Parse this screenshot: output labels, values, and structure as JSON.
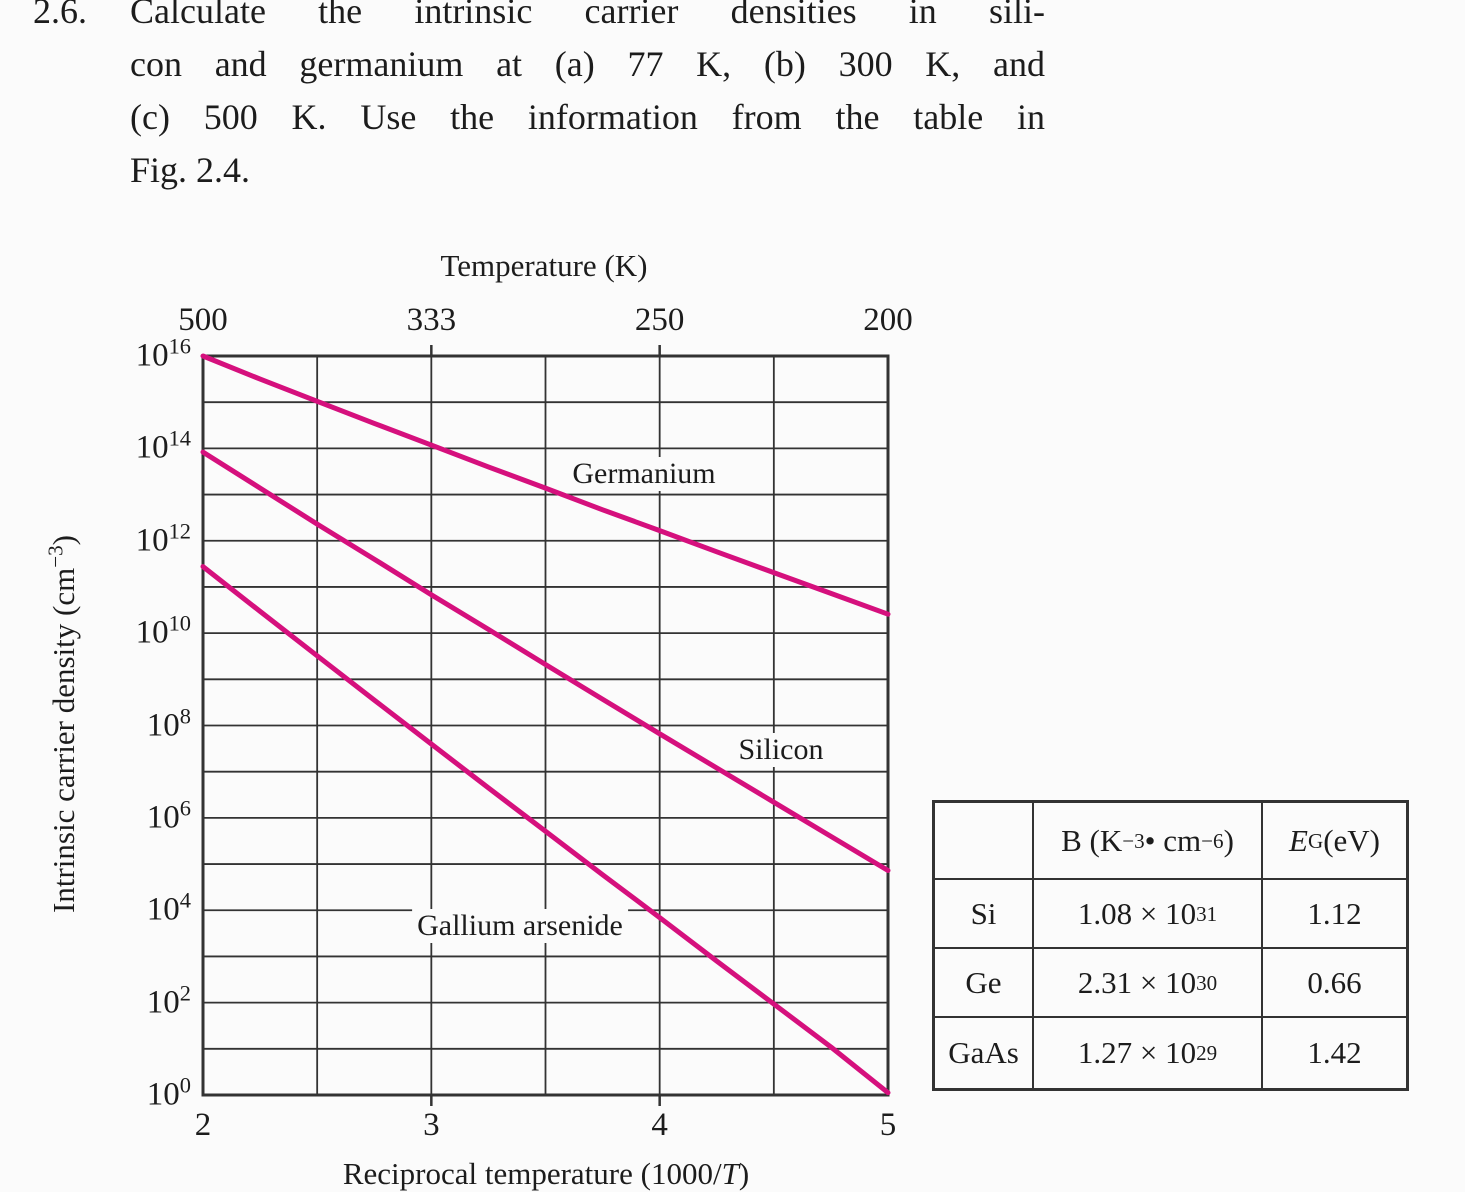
{
  "problem": {
    "number": "2.6.",
    "lines": [
      "Calculate the intrinsic carrier densities in sili-",
      "con and germanium at (a) 77 K, (b) 300 K, and",
      "(c) 500 K. Use the information from the table in",
      "Fig. 2.4."
    ]
  },
  "chart_data": {
    "type": "line",
    "grid_color": "#333333",
    "curve_color": "#d5107d",
    "top_axis": {
      "title": "Temperature (K)",
      "ticks": [
        {
          "x": 2,
          "label": "500"
        },
        {
          "x": 3,
          "label": "333"
        },
        {
          "x": 4,
          "label": "250"
        },
        {
          "x": 5,
          "label": "200"
        }
      ]
    },
    "x_axis": {
      "label_prefix": "Reciprocal temperature (1000/",
      "label_italic": "T",
      "label_suffix": ")",
      "range": [
        2,
        5
      ],
      "gridline_step": 0.5,
      "major_tick_xs": [
        3,
        4
      ],
      "ticks": [
        {
          "x": 2,
          "label": "2"
        },
        {
          "x": 3,
          "label": "3"
        },
        {
          "x": 4,
          "label": "4"
        },
        {
          "x": 5,
          "label": "5"
        }
      ]
    },
    "y_axis": {
      "label_prefix": "Intrinsic carrier density (cm",
      "label_sup": "−3",
      "label_suffix": ")",
      "scale": "log10",
      "base": "10",
      "exponent_range": [
        0,
        16
      ],
      "labeled_exponents": [
        16,
        14,
        12,
        10,
        8,
        6,
        4,
        2,
        0
      ]
    },
    "series": [
      {
        "name": "Germanium",
        "color": "#d5107d",
        "points_x_1000overT_log10n": [
          [
            2.0,
            16.0
          ],
          [
            2.25,
            15.5
          ],
          [
            2.5,
            15.02
          ],
          [
            2.75,
            14.54
          ],
          [
            3.0,
            14.07
          ],
          [
            3.25,
            13.6
          ],
          [
            3.5,
            13.14
          ],
          [
            3.75,
            12.67
          ],
          [
            4.0,
            12.22
          ],
          [
            4.25,
            11.76
          ],
          [
            4.5,
            11.31
          ],
          [
            4.75,
            10.86
          ],
          [
            5.0,
            10.41
          ]
        ]
      },
      {
        "name": "Silicon",
        "color": "#d5107d",
        "points_x_1000overT_log10n": [
          [
            2.0,
            13.92
          ],
          [
            2.25,
            13.14
          ],
          [
            2.5,
            12.36
          ],
          [
            2.75,
            11.6
          ],
          [
            3.0,
            10.83
          ],
          [
            3.25,
            10.08
          ],
          [
            3.5,
            9.32
          ],
          [
            3.75,
            8.57
          ],
          [
            4.0,
            7.82
          ],
          [
            4.25,
            7.08
          ],
          [
            4.5,
            6.34
          ],
          [
            4.75,
            5.6
          ],
          [
            5.0,
            4.86
          ]
        ]
      },
      {
        "name": "Gallium arsenide",
        "color": "#d5107d",
        "points_x_1000overT_log10n": [
          [
            2.0,
            11.44
          ],
          [
            2.25,
            10.47
          ],
          [
            2.5,
            9.51
          ],
          [
            2.75,
            8.55
          ],
          [
            3.0,
            7.6
          ],
          [
            3.25,
            6.65
          ],
          [
            3.5,
            5.71
          ],
          [
            3.75,
            4.77
          ],
          [
            4.0,
            3.84
          ],
          [
            4.25,
            2.9
          ],
          [
            4.5,
            1.97
          ],
          [
            4.75,
            1.04
          ],
          [
            5.0,
            0.05
          ]
        ]
      }
    ]
  },
  "table": {
    "header": {
      "material": "",
      "b_prefix": "B (K",
      "b_sup1": "−3",
      "b_mid": " • cm",
      "b_sup2": "−6",
      "b_suffix": ")",
      "eg_e": "E",
      "eg_sub": "G",
      "eg_unit": " (eV)"
    },
    "rows": [
      {
        "material": "Si",
        "b_mantissa": "1.08 × 10",
        "b_exp": "31",
        "eg": "1.12"
      },
      {
        "material": "Ge",
        "b_mantissa": "2.31 × 10",
        "b_exp": "30",
        "eg": "0.66"
      },
      {
        "material": "GaAs",
        "b_mantissa": "1.27 × 10",
        "b_exp": "29",
        "eg": "1.42"
      }
    ]
  }
}
